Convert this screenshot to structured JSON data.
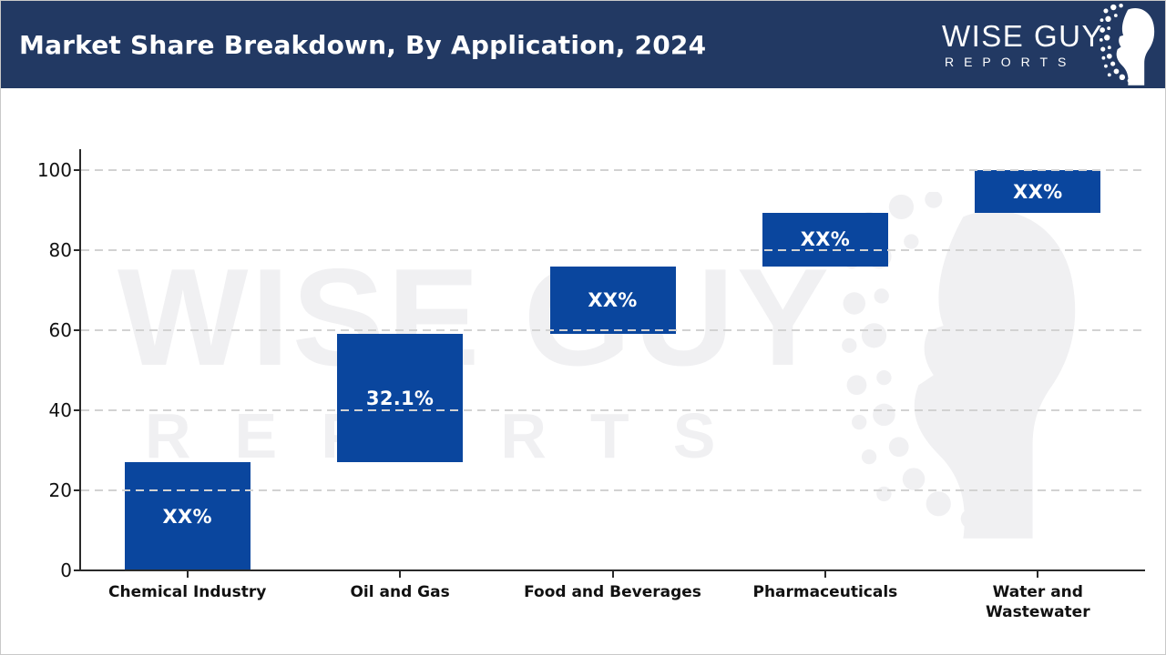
{
  "header": {
    "title": "Market Share Breakdown, By Application, 2024",
    "logo": {
      "line1": "WISE GUY",
      "line2": "REPORTS"
    }
  },
  "watermark": {
    "line1": "WISE GUY",
    "line2": "REPORTS"
  },
  "chart_data": {
    "type": "bar",
    "variant": "floating-waterfall-segments",
    "title": "Market Share Breakdown, By Application, 2024",
    "categories": [
      "Chemical Industry",
      "Oil and Gas",
      "Food and Beverages",
      "Pharmaceuticals",
      "Water and\nWastewater"
    ],
    "segments": [
      {
        "category": "Chemical Industry",
        "start": 0,
        "end": 27,
        "label": "XX%"
      },
      {
        "category": "Oil and Gas",
        "start": 27,
        "end": 59.1,
        "label": "32.1%"
      },
      {
        "category": "Food and Beverages",
        "start": 59.1,
        "end": 76,
        "label": "XX%"
      },
      {
        "category": "Pharmaceuticals",
        "start": 76,
        "end": 89.3,
        "label": "XX%"
      },
      {
        "category": "Water and Wastewater",
        "start": 89.3,
        "end": 100,
        "label": "XX%"
      }
    ],
    "xlabel": "",
    "ylabel": "",
    "ylim": [
      0,
      100
    ],
    "yticks": [
      0,
      20,
      40,
      60,
      80,
      100
    ],
    "grid": "dashed-horizontal-drawn-above-bars",
    "legend": "none",
    "bar_color": "#0a469e",
    "bar_label_color": "#ffffff"
  },
  "colors": {
    "header_bg": "#223963",
    "page_bg": "#ffffff",
    "bar": "#0a469e",
    "axis": "#2a2a2a",
    "gridline": "#d2d2d2",
    "watermark": "#f0f0f2",
    "tick_label": "#111111",
    "page_border": "#c9c9c9"
  }
}
